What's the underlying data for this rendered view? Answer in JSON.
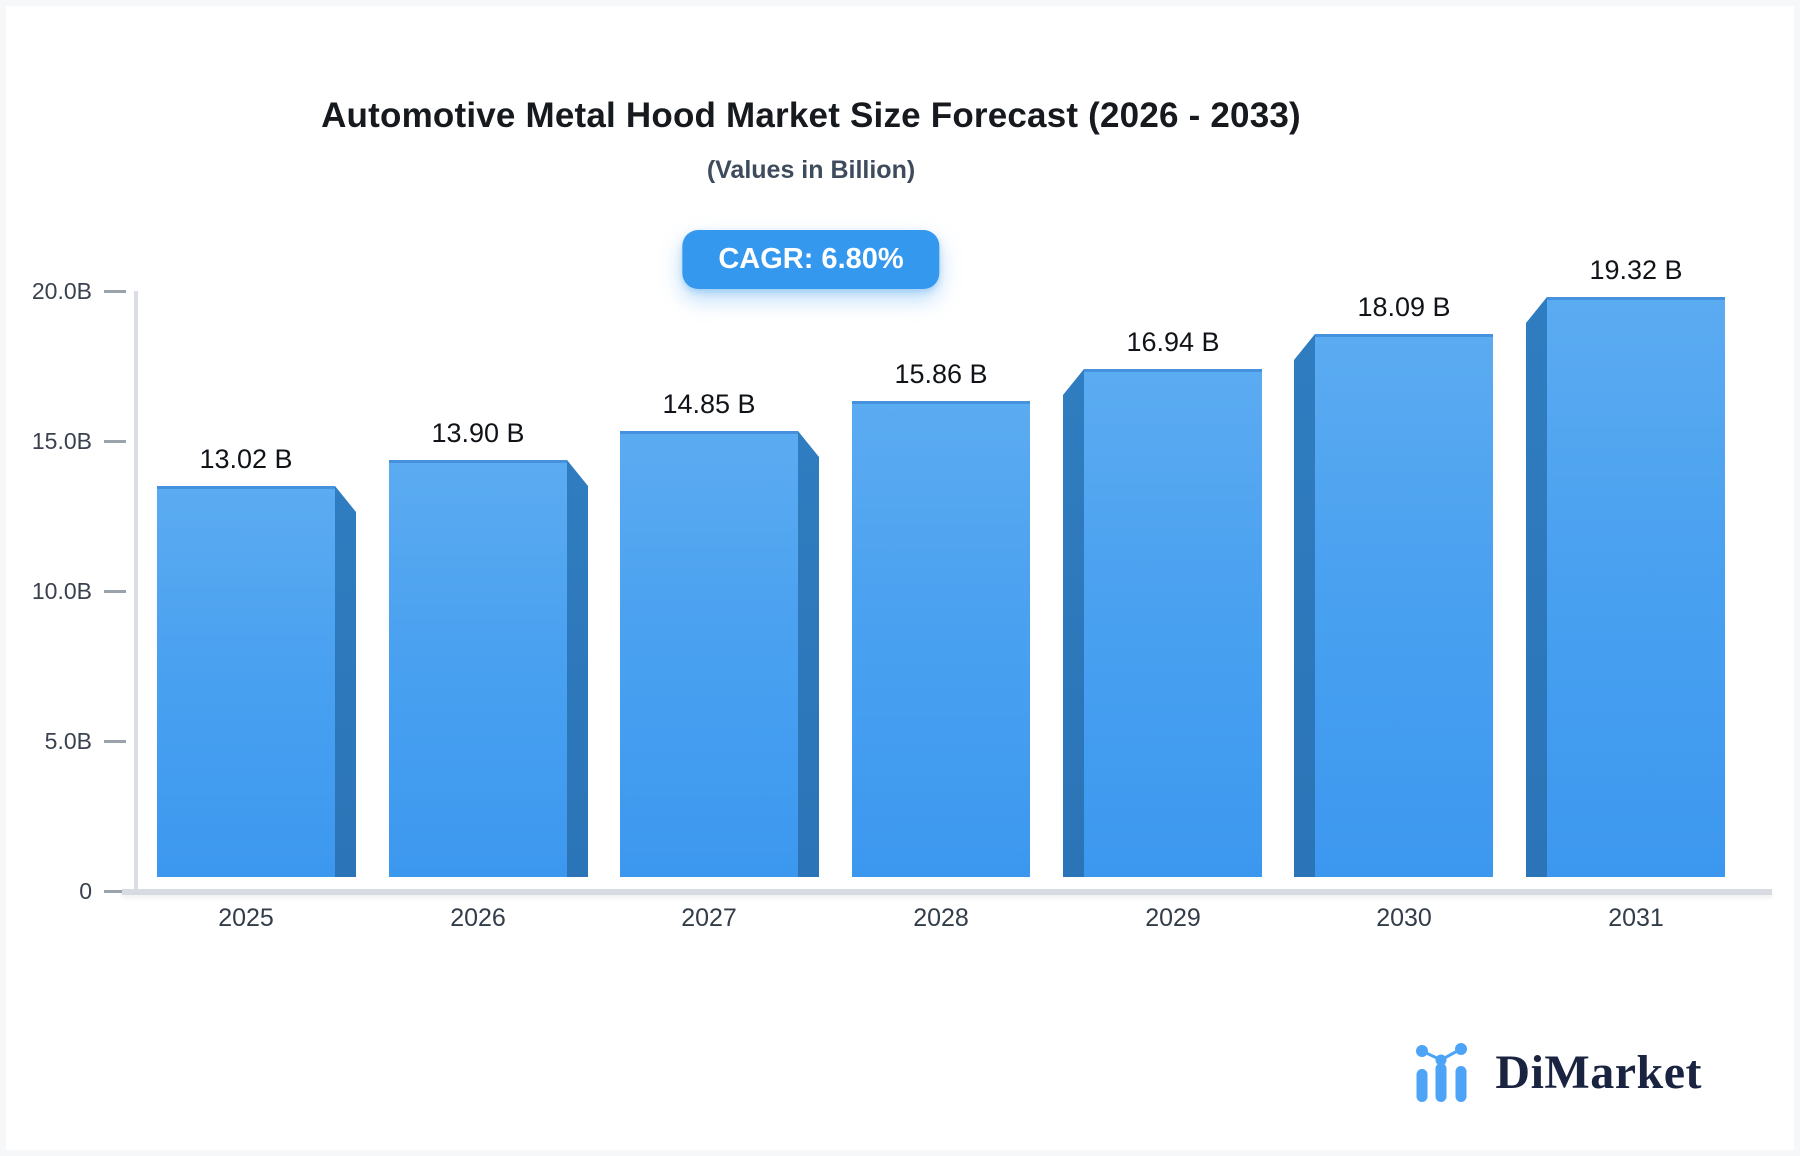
{
  "chart_data": {
    "type": "bar",
    "title": "Automotive Metal Hood Market Size Forecast (2026 - 2033)",
    "subtitle": "(Values in Billion)",
    "cagr_label": "CAGR: 6.80%",
    "categories": [
      "2025",
      "2026",
      "2027",
      "2028",
      "2029",
      "2030",
      "2031"
    ],
    "values": [
      13.02,
      13.9,
      14.85,
      15.86,
      16.94,
      18.09,
      19.32
    ],
    "value_labels": [
      "13.02 B",
      "13.90 B",
      "14.85 B",
      "15.86 B",
      "16.94 B",
      "18.09 B",
      "19.32 B"
    ],
    "ylim": [
      0,
      20
    ],
    "ytick_labels": [
      "20.0B",
      "15.0B",
      "10.0B",
      "5.0B",
      "0"
    ],
    "grid": false,
    "legend": false,
    "bar_style": "3d-extruded"
  },
  "brand": {
    "name": "DiMarket",
    "icon": "bar-chart-logo-icon"
  },
  "colors": {
    "accent": "#3598ef",
    "bar_face_top": "#5babf1",
    "bar_face_bottom": "#3c98ef",
    "bar_side": "#2d79bc",
    "axis_line": "#d9dde3",
    "badge_bg": "#3598ef",
    "badge_text": "#ffffff",
    "title_text": "#16191d",
    "logo_navy": "#1a2440"
  }
}
